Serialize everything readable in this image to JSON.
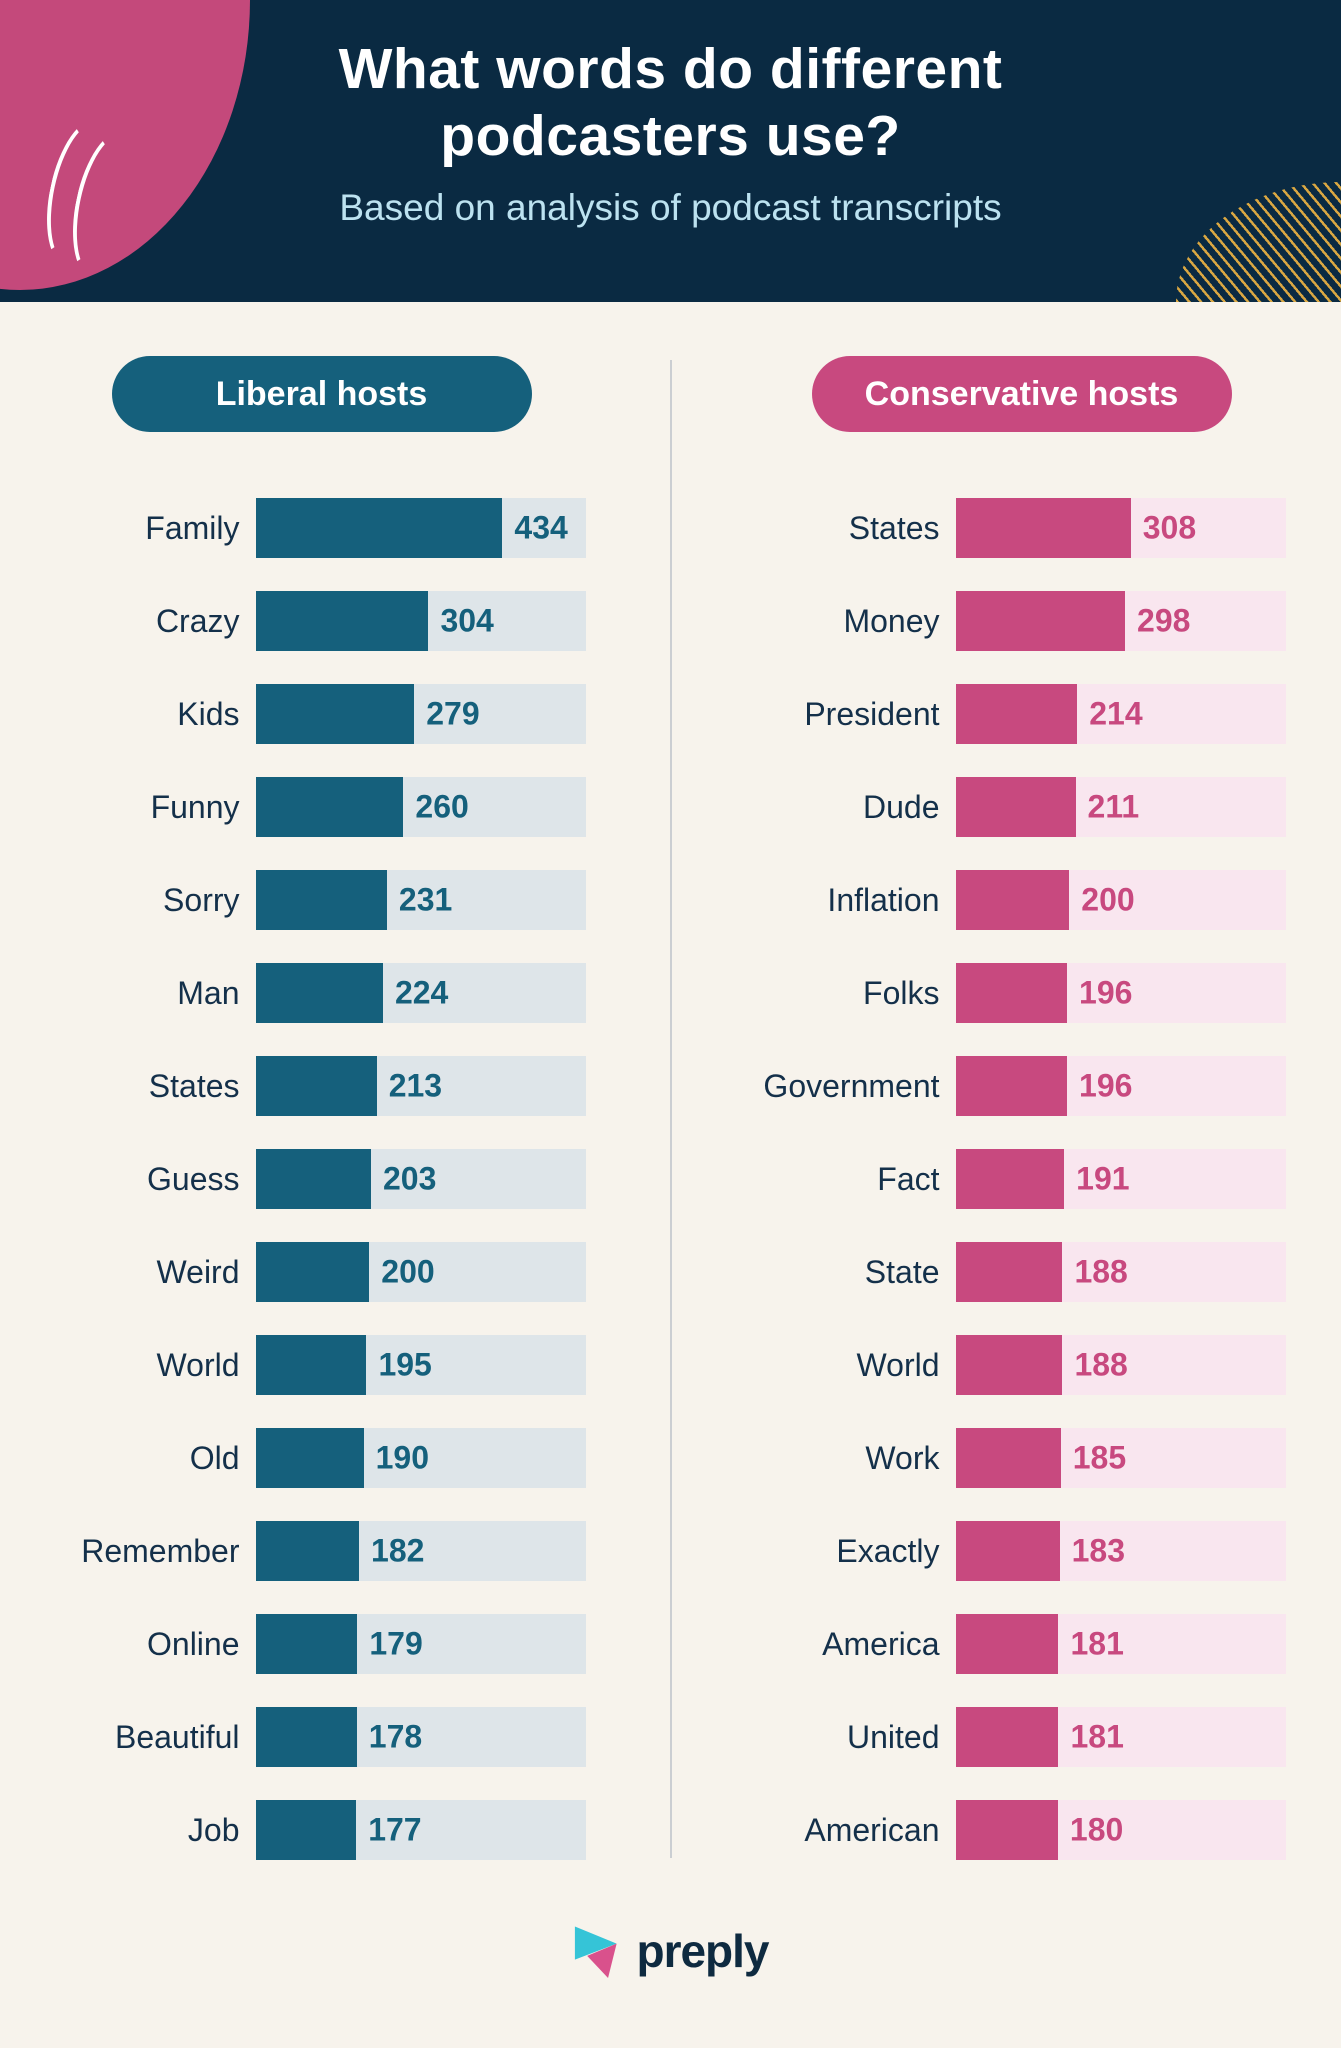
{
  "header": {
    "title": "What words do different\npodcasters use?",
    "subtitle": "Based on analysis of podcast transcripts"
  },
  "chart_data": {
    "type": "bar",
    "orientation": "horizontal",
    "title": "What words do different podcasters use?",
    "subtitle": "Based on analysis of podcast transcripts",
    "scale_max": 580,
    "legend_position": "column-headers",
    "groups": [
      {
        "label": "Liberal hosts",
        "bar_color": "#15607C",
        "track_color": "#DEE5E9",
        "items": [
          {
            "word": "Family",
            "value": 434
          },
          {
            "word": "Crazy",
            "value": 304
          },
          {
            "word": "Kids",
            "value": 279
          },
          {
            "word": "Funny",
            "value": 260
          },
          {
            "word": "Sorry",
            "value": 231
          },
          {
            "word": "Man",
            "value": 224
          },
          {
            "word": "States",
            "value": 213
          },
          {
            "word": "Guess",
            "value": 203
          },
          {
            "word": "Weird",
            "value": 200
          },
          {
            "word": "World",
            "value": 195
          },
          {
            "word": "Old",
            "value": 190
          },
          {
            "word": "Remember",
            "value": 182
          },
          {
            "word": "Online",
            "value": 179
          },
          {
            "word": "Beautiful",
            "value": 178
          },
          {
            "word": "Job",
            "value": 177
          }
        ]
      },
      {
        "label": "Conservative hosts",
        "bar_color": "#C8497F",
        "track_color": "#F9E6EF",
        "items": [
          {
            "word": "States",
            "value": 308
          },
          {
            "word": "Money",
            "value": 298
          },
          {
            "word": "President",
            "value": 214
          },
          {
            "word": "Dude",
            "value": 211
          },
          {
            "word": "Inflation",
            "value": 200
          },
          {
            "word": "Folks",
            "value": 196
          },
          {
            "word": "Government",
            "value": 196
          },
          {
            "word": "Fact",
            "value": 191
          },
          {
            "word": "State",
            "value": 188
          },
          {
            "word": "World",
            "value": 188
          },
          {
            "word": "Work",
            "value": 185
          },
          {
            "word": "Exactly",
            "value": 183
          },
          {
            "word": "America",
            "value": 181
          },
          {
            "word": "United",
            "value": 181
          },
          {
            "word": "American",
            "value": 180
          }
        ]
      }
    ]
  },
  "footer": {
    "brand": "preply"
  },
  "colors": {
    "header_background": "#0A2A42",
    "page_background": "#F7F3EC",
    "blob_pink": "#C4497B",
    "gold_lines": "#D9A742",
    "subtitle_text": "#BCE2F0",
    "label_text": "#14304A",
    "liberal_teal": "#15607C",
    "conservative_pink": "#C8497F"
  }
}
